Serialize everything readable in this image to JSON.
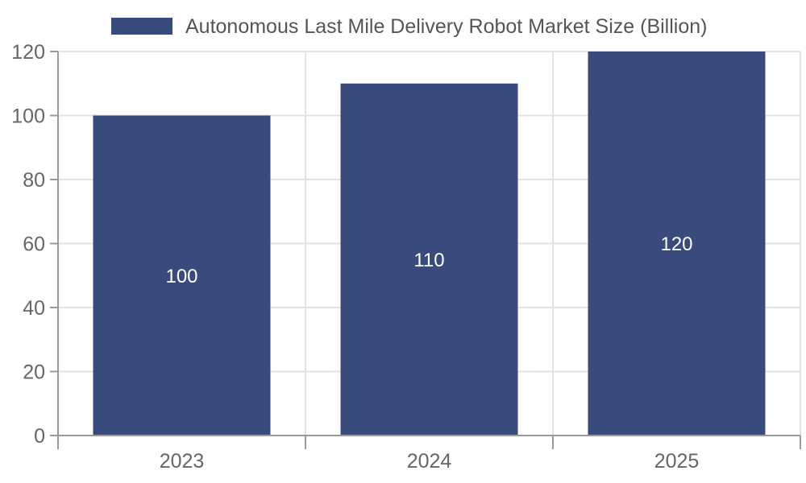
{
  "chart_data": {
    "type": "bar",
    "title": "Autonomous Last Mile Delivery Robot Market Size (Billion)",
    "categories": [
      "2023",
      "2024",
      "2025"
    ],
    "series": [
      {
        "name": "Autonomous Last Mile Delivery Robot Market Size (Billion)",
        "values": [
          100,
          110,
          120
        ]
      }
    ],
    "data_labels": [
      "100",
      "110",
      "120"
    ],
    "xlabel": "",
    "ylabel": "",
    "ylim": [
      0,
      120
    ],
    "y_ticks": [
      0,
      20,
      40,
      60,
      80,
      100,
      120
    ],
    "grid": true,
    "legend_position": "top",
    "colors": {
      "bar": "#394A7D",
      "grid": "#E2E2E2",
      "axis": "#999999",
      "tick_label": "#666666",
      "title": "#555555",
      "data_label": "#FFFFFF",
      "background": "#FFFFFF"
    }
  }
}
